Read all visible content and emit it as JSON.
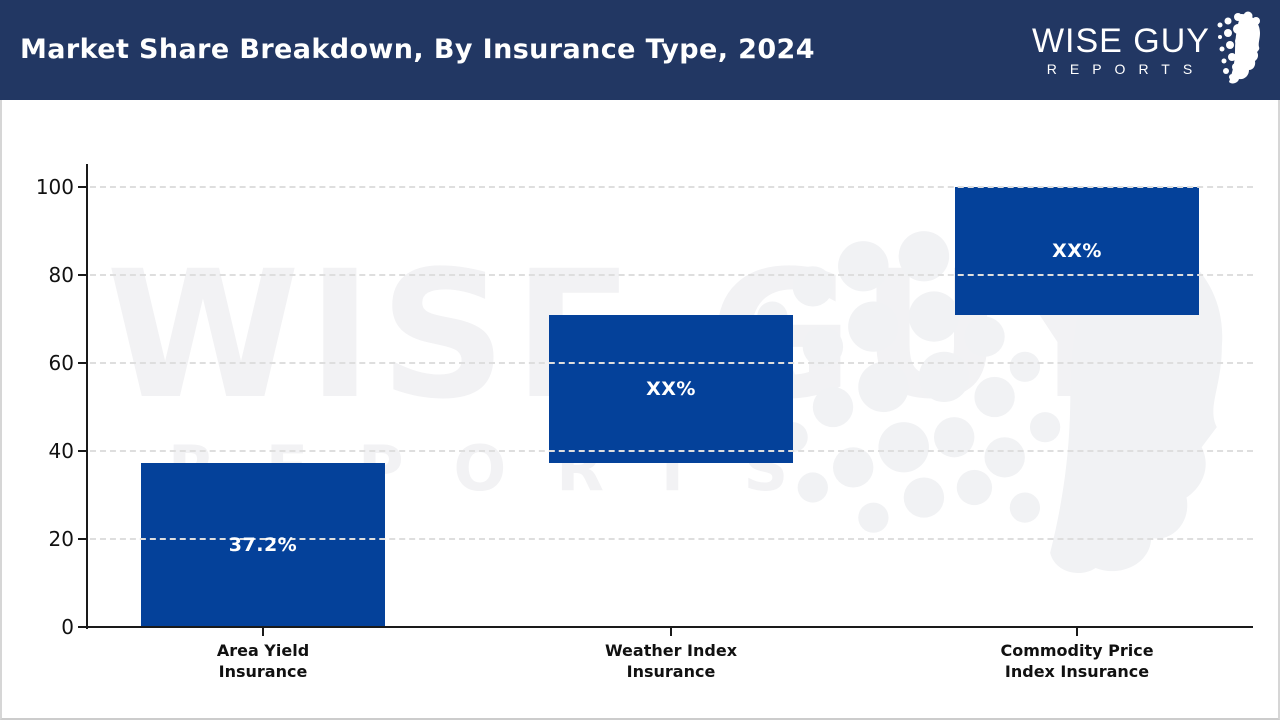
{
  "header": {
    "title": "Market Share Breakdown, By Insurance Type, 2024",
    "bg_color": "#223763",
    "logo": {
      "line1": "WISE GUY",
      "line2": "REPORTS"
    }
  },
  "watermark": {
    "line1": "WISE GUY",
    "line2": "REPORTS"
  },
  "chart_data": {
    "type": "bar",
    "variant": "waterfall",
    "title": "Market Share Breakdown, By Insurance Type, 2024",
    "unit": "%",
    "categories": [
      "Area Yield\nInsurance",
      "Weather Index\nInsurance",
      "Commodity Price\nIndex Insurance"
    ],
    "segments": [
      {
        "category": "Area Yield\nInsurance",
        "start": 0,
        "end": 37.2,
        "label": "37.2%"
      },
      {
        "category": "Weather Index\nInsurance",
        "start": 37.2,
        "end": 71,
        "label": "XX%"
      },
      {
        "category": "Commodity Price\nIndex Insurance",
        "start": 71,
        "end": 100,
        "label": "XX%"
      }
    ],
    "yticks": [
      0,
      20,
      40,
      60,
      80,
      100
    ],
    "ylim": [
      0,
      105
    ],
    "xlabel": "",
    "ylabel": "",
    "grid": "horizontal-dashed",
    "legend": "none",
    "colors": {
      "bar": "#04419a",
      "grid": "#dedede",
      "axis": "#1a1a1a",
      "label_on_bar": "#ffffff",
      "watermark": "#f2f2f4"
    }
  }
}
